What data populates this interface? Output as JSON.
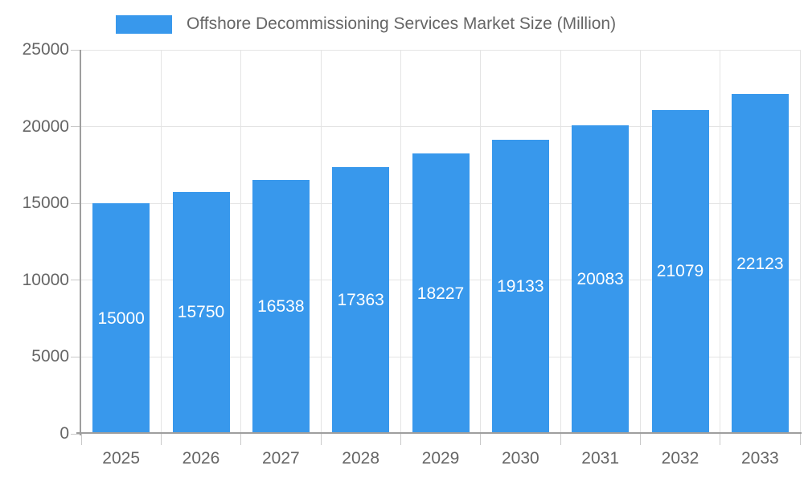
{
  "legend": {
    "label": "Offshore Decommissioning Services Market Size (Million)"
  },
  "chart_data": {
    "type": "bar",
    "title": "Offshore Decommissioning Services Market Size (Million)",
    "categories": [
      "2025",
      "2026",
      "2027",
      "2028",
      "2029",
      "2030",
      "2031",
      "2032",
      "2033"
    ],
    "values": [
      15000,
      15750,
      16538,
      17363,
      18227,
      19133,
      20083,
      21079,
      22123
    ],
    "xlabel": "",
    "ylabel": "",
    "ylim": [
      0,
      25000
    ],
    "yticks": [
      0,
      5000,
      10000,
      15000,
      20000,
      25000
    ],
    "grid": true,
    "legend_position": "top",
    "value_labels": "inside-center-white"
  },
  "colors": {
    "bar": "#3898EC",
    "axis_text": "#666666",
    "grid": "#e4e4e4",
    "tick": "#c9c9c9",
    "axis_line": "#9e9e9e",
    "value_label": "#ffffff",
    "background": "#ffffff"
  }
}
